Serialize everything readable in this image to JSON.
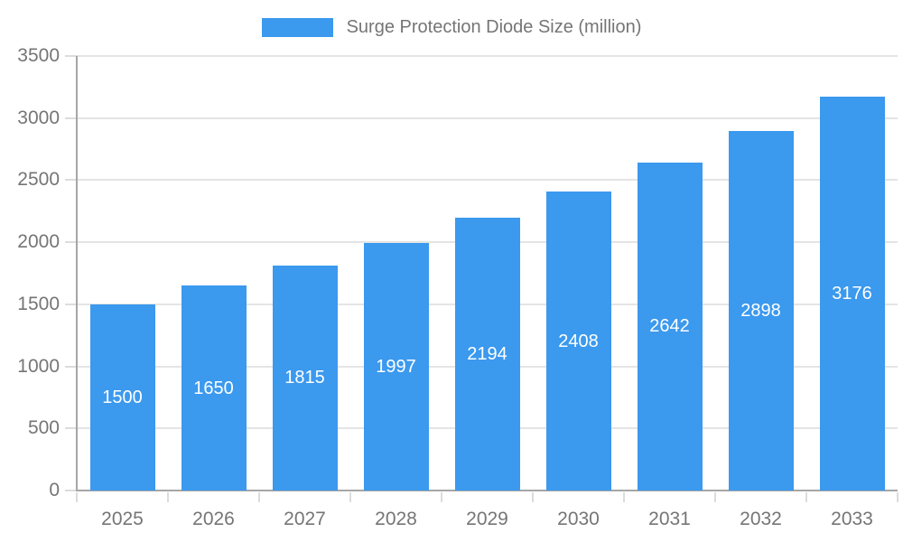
{
  "chart_data": {
    "type": "bar",
    "title": "Surge Protection Diode Size (million)",
    "categories": [
      "2025",
      "2026",
      "2027",
      "2028",
      "2029",
      "2030",
      "2031",
      "2032",
      "2033"
    ],
    "series": [
      {
        "name": "Surge Protection Diode Size (million)",
        "values": [
          1500,
          1650,
          1815,
          1997,
          2194,
          2408,
          2642,
          2898,
          3176
        ]
      }
    ],
    "xlabel": "",
    "ylabel": "",
    "ylim": [
      0,
      3500
    ],
    "ytick_interval": 500,
    "ytick_labels": [
      "0",
      "500",
      "1000",
      "1500",
      "2000",
      "2500",
      "3000",
      "3500"
    ],
    "grid": true,
    "legend_position": "top-center",
    "value_labels": "inside-center",
    "colors": {
      "bar": "#3B99EE",
      "value_label": "#FFFFFF",
      "axis_text": "#757575",
      "axis_line": "#A6A6A6",
      "gridline": "#E4E4E4",
      "tick": "#DCDCDC"
    }
  }
}
